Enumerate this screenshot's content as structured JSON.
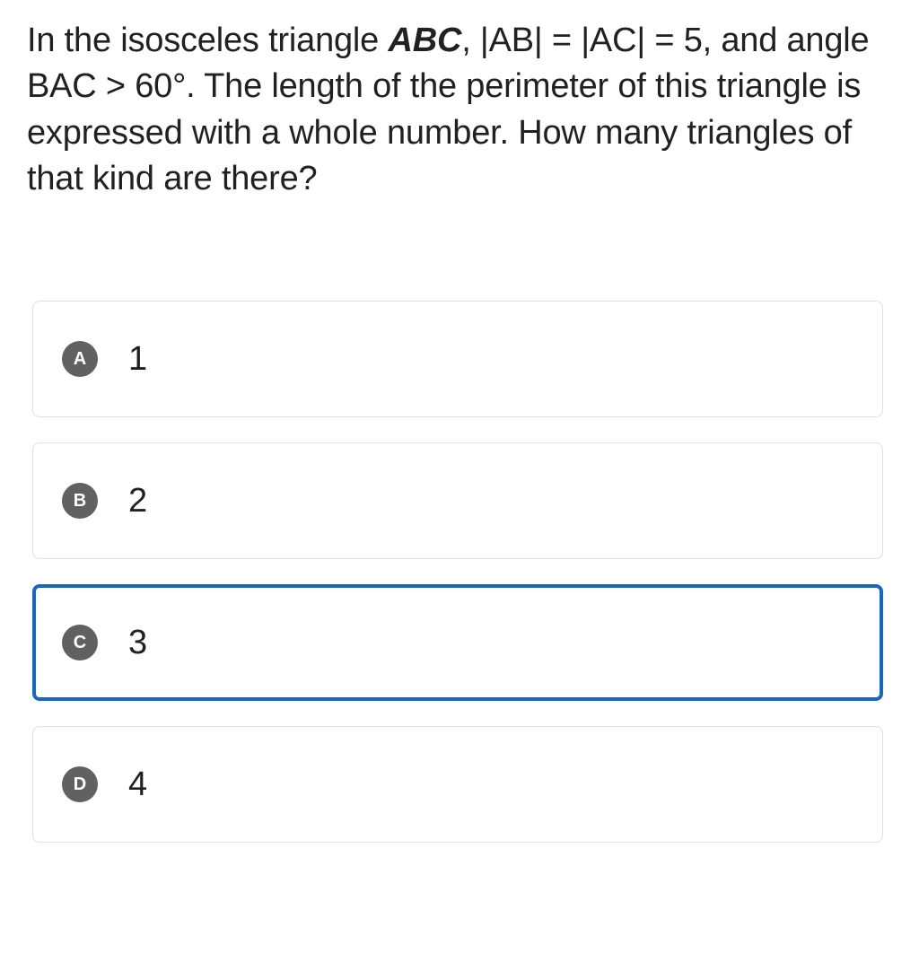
{
  "question": {
    "prefix": "In the isosceles triangle ",
    "triangle_name": "ABC",
    "after_name": ", |AB| = |AC| = 5, and angle BAC > 60°. The length of the perimeter of this triangle is expressed with a whole number. How many triangles of that kind are there?"
  },
  "options": [
    {
      "letter": "A",
      "label": "1",
      "selected": false
    },
    {
      "letter": "B",
      "label": "2",
      "selected": false
    },
    {
      "letter": "C",
      "label": "3",
      "selected": true
    },
    {
      "letter": "D",
      "label": "4",
      "selected": false
    }
  ],
  "colors": {
    "text": "#212121",
    "badge_bg": "#616161",
    "badge_fg": "#ffffff",
    "option_border": "#e0e0e0",
    "selected_border": "#1867c0",
    "background": "#ffffff"
  }
}
